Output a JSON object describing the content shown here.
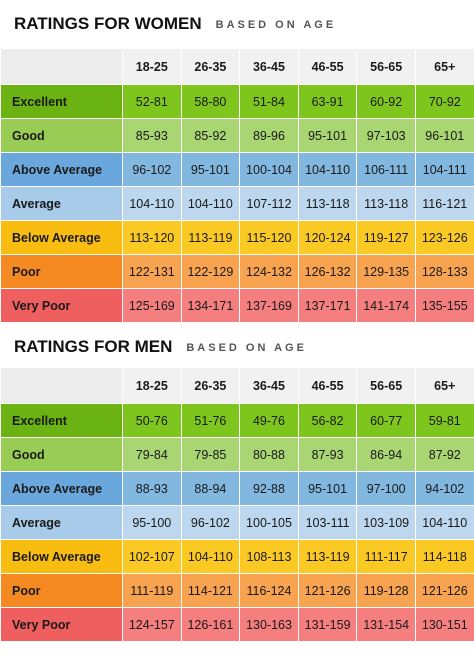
{
  "women": {
    "title": "RATINGS FOR WOMEN",
    "subtitle": "BASED ON AGE",
    "headers": [
      "18-25",
      "26-35",
      "36-45",
      "46-55",
      "56-65",
      "65+"
    ],
    "rows": [
      {
        "label": "Excellent",
        "values": [
          "52-81",
          "58-80",
          "51-84",
          "63-91",
          "60-92",
          "70-92"
        ]
      },
      {
        "label": "Good",
        "values": [
          "85-93",
          "85-92",
          "89-96",
          "95-101",
          "97-103",
          "96-101"
        ]
      },
      {
        "label": "Above Average",
        "values": [
          "96-102",
          "95-101",
          "100-104",
          "104-110",
          "106-111",
          "104-111"
        ]
      },
      {
        "label": "Average",
        "values": [
          "104-110",
          "104-110",
          "107-112",
          "113-118",
          "113-118",
          "116-121"
        ]
      },
      {
        "label": "Below Average",
        "values": [
          "113-120",
          "113-119",
          "115-120",
          "120-124",
          "119-127",
          "123-126"
        ]
      },
      {
        "label": "Poor",
        "values": [
          "122-131",
          "122-129",
          "124-132",
          "126-132",
          "129-135",
          "128-133"
        ]
      },
      {
        "label": "Very Poor",
        "values": [
          "125-169",
          "134-171",
          "137-169",
          "137-171",
          "141-174",
          "135-155"
        ]
      }
    ]
  },
  "men": {
    "title": "RATINGS FOR MEN",
    "subtitle": "BASED ON AGE",
    "headers": [
      "18-25",
      "26-35",
      "36-45",
      "46-55",
      "56-65",
      "65+"
    ],
    "rows": [
      {
        "label": "Excellent",
        "values": [
          "50-76",
          "51-76",
          "49-76",
          "56-82",
          "60-77",
          "59-81"
        ]
      },
      {
        "label": "Good",
        "values": [
          "79-84",
          "79-85",
          "80-88",
          "87-93",
          "86-94",
          "87-92"
        ]
      },
      {
        "label": "Above Average",
        "values": [
          "88-93",
          "88-94",
          "92-88",
          "95-101",
          "97-100",
          "94-102"
        ]
      },
      {
        "label": "Average",
        "values": [
          "95-100",
          "96-102",
          "100-105",
          "103-111",
          "103-109",
          "104-110"
        ]
      },
      {
        "label": "Below Average",
        "values": [
          "102-107",
          "104-110",
          "108-113",
          "113-119",
          "111-117",
          "114-118"
        ]
      },
      {
        "label": "Poor",
        "values": [
          "111-119",
          "114-121",
          "116-124",
          "121-126",
          "119-128",
          "121-126"
        ]
      },
      {
        "label": "Very Poor",
        "values": [
          "124-157",
          "126-161",
          "130-163",
          "131-159",
          "131-154",
          "130-151"
        ]
      }
    ]
  }
}
